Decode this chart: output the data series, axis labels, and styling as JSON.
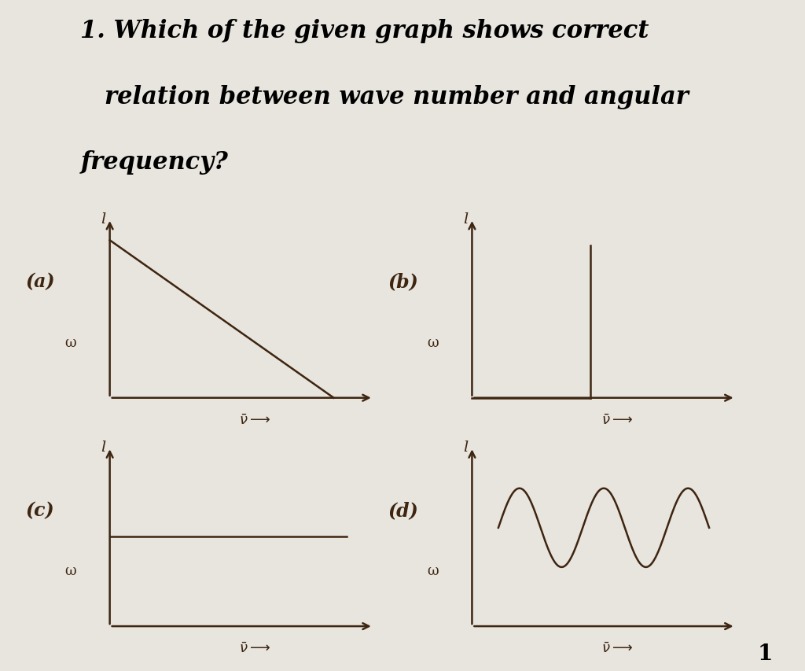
{
  "title_line1": "1. Which of the given graph shows correct",
  "title_line2": "relation between wave number and angular",
  "title_line3": "frequency?",
  "background_color": "#e8e4de",
  "axes_color": "#3d2510",
  "label_a": "(a)",
  "label_b": "(b)",
  "label_c": "(c)",
  "label_d": "(d)",
  "y_label": "l",
  "omega_label": "ω",
  "page_number": "1",
  "font_size_title": 22,
  "font_size_label": 17,
  "font_size_axis_label": 15,
  "font_size_page": 20
}
